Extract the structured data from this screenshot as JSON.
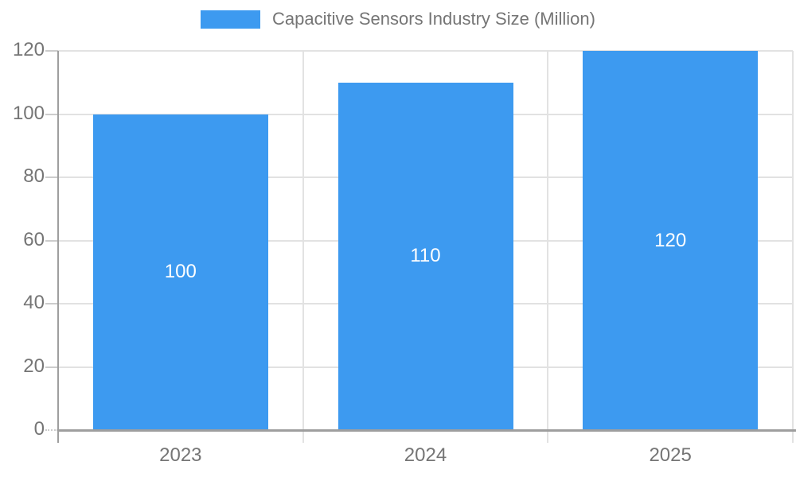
{
  "legend": {
    "label": "Capacitive Sensors Industry Size (Million)"
  },
  "chart_data": {
    "type": "bar",
    "title": "Capacitive Sensors Industry Size (Million)",
    "categories": [
      "2023",
      "2024",
      "2025"
    ],
    "series": [
      {
        "name": "Capacitive Sensors Industry Size (Million)",
        "values": [
          100,
          110,
          120
        ]
      }
    ],
    "values": [
      100,
      110,
      120
    ],
    "data_labels": [
      "100",
      "110",
      "120"
    ],
    "xlabel": "",
    "ylabel": "",
    "ylim": [
      0,
      120
    ],
    "yticks": [
      0,
      20,
      40,
      60,
      80,
      100,
      120
    ],
    "grid": true,
    "legend_position": "top",
    "colors": {
      "bar": "#3D9AF0",
      "value_label": "#FFFFFF",
      "axis_text": "#757575",
      "grid_line": "#E2E2E2",
      "axis_line": "#9E9E9E",
      "tick_line": "#CCCCCC",
      "background": "#FFFFFF"
    }
  }
}
